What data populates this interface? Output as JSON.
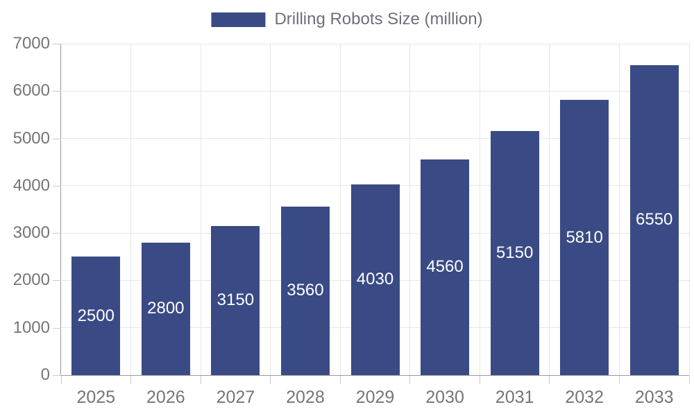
{
  "chart_data": {
    "type": "bar",
    "title": "Drilling Robots Size (million)",
    "series_name": "Drilling Robots Size (million)",
    "categories": [
      "2025",
      "2026",
      "2027",
      "2028",
      "2029",
      "2030",
      "2031",
      "2032",
      "2033"
    ],
    "values": [
      2500,
      2800,
      3150,
      3560,
      4030,
      4560,
      5150,
      5810,
      6550
    ],
    "xlabel": "",
    "ylabel": "",
    "ylim": [
      0,
      7000
    ],
    "yticks": [
      0,
      1000,
      2000,
      3000,
      4000,
      5000,
      6000,
      7000
    ],
    "grid": true,
    "legend_position": "top-center",
    "bar_color": "#3A4A85",
    "bar_value_label_color": "#FFFFFF",
    "axis_label_color": "#757575",
    "legend_text_color": "#6E7079",
    "grid_color": "#E6E6E6",
    "axis_line_color": "#9A9A9A",
    "tick_color": "#C9C9C9",
    "background": "#FFFFFF"
  }
}
